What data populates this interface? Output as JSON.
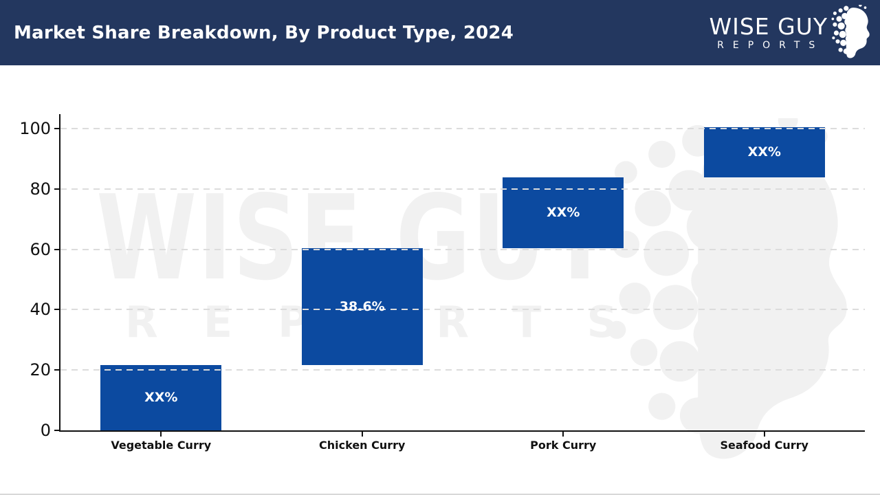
{
  "header": {
    "title": "Market Share Breakdown, By Product Type, 2024",
    "logo": {
      "line1": "WISE GUY",
      "line2": "REPORTS"
    }
  },
  "watermark": {
    "line1": "WISE GUY",
    "line2": "REPORTS"
  },
  "chart_data": {
    "type": "bar",
    "subtype": "waterfall-floating-bars",
    "title": "Market Share Breakdown, By Product Type, 2024",
    "categories": [
      "Vegetable Curry",
      "Chicken Curry",
      "Pork Curry",
      "Seafood Curry"
    ],
    "segments": [
      {
        "category": "Vegetable Curry",
        "start": 0,
        "end": 21.7,
        "value_label": "XX%"
      },
      {
        "category": "Chicken Curry",
        "start": 21.7,
        "end": 60.3,
        "value_label": "38.6%"
      },
      {
        "category": "Pork Curry",
        "start": 60.3,
        "end": 83.9,
        "value_label": "XX%"
      },
      {
        "category": "Seafood Curry",
        "start": 83.9,
        "end": 100.4,
        "value_label": "XX%"
      }
    ],
    "xlabel": "",
    "ylabel": "",
    "yticks": [
      0,
      20,
      40,
      60,
      80,
      100
    ],
    "ylim": [
      0,
      104.5
    ],
    "grid": "horizontal-dashed",
    "legend": "none",
    "bar_color": "#0c4aa0",
    "bar_label_color": "#ffffff",
    "gridline_color": "#dcdcdc",
    "axis_color": "#111111",
    "header_bg_color": "#23375f",
    "watermark_color": "#f1f1f1"
  }
}
